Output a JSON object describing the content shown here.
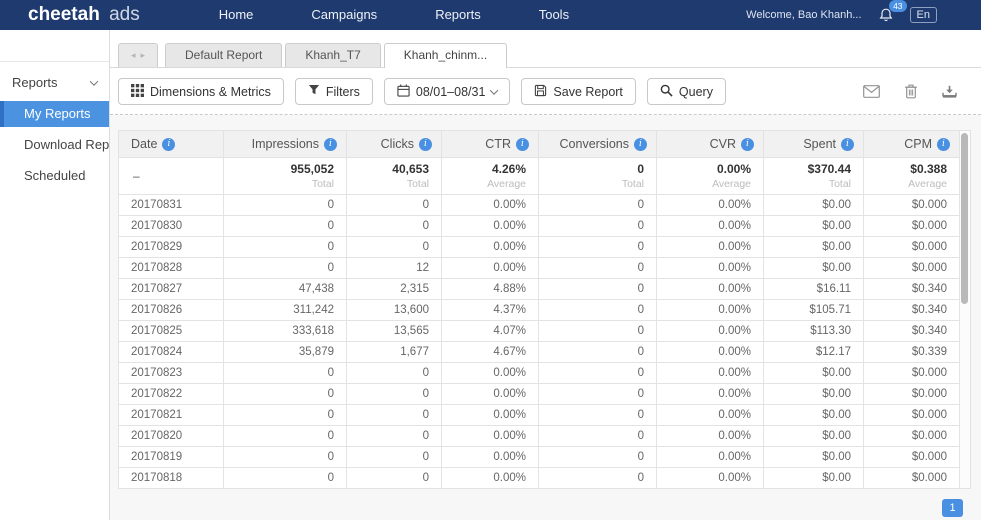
{
  "colors": {
    "navbar_bg": "#1e3a6e",
    "accent_blue": "#4a90e2",
    "sidebar_active_bg": "#4b93e0",
    "sidebar_active_stripe": "#2f6fc4"
  },
  "navbar": {
    "brand_bold": "cheetah",
    "brand_light": "ads",
    "items": [
      "Home",
      "Campaigns",
      "Reports",
      "Tools"
    ],
    "welcome": "Welcome,  Bao Khanh...",
    "notification_count": "43",
    "language": "En"
  },
  "tabs": {
    "items": [
      {
        "label": "Default Report",
        "active": false
      },
      {
        "label": "Khanh_T7",
        "active": false
      },
      {
        "label": "Khanh_chinm...",
        "active": true
      }
    ]
  },
  "sidebar": {
    "group_label": "Reports",
    "items": [
      {
        "label": "My Reports",
        "active": true
      },
      {
        "label": "Download Report",
        "active": false
      },
      {
        "label": "Scheduled",
        "active": false
      }
    ]
  },
  "toolbar": {
    "dimensions_metrics": "Dimensions & Metrics",
    "filters": "Filters",
    "date_range": "08/01–08/31",
    "save_report": "Save Report",
    "query": "Query"
  },
  "table": {
    "info_icon_glyph": "i",
    "columns": [
      "Date",
      "Impressions",
      "Clicks",
      "CTR",
      "Conversions",
      "CVR",
      "Spent",
      "CPM"
    ],
    "totals": {
      "date": "–",
      "cells": [
        {
          "value": "955,052",
          "sub": "Total"
        },
        {
          "value": "40,653",
          "sub": "Total"
        },
        {
          "value": "4.26%",
          "sub": "Average"
        },
        {
          "value": "0",
          "sub": "Total"
        },
        {
          "value": "0.00%",
          "sub": "Average"
        },
        {
          "value": "$370.44",
          "sub": "Total"
        },
        {
          "value": "$0.388",
          "sub": "Average"
        }
      ]
    },
    "rows": [
      [
        "20170831",
        "0",
        "0",
        "0.00%",
        "0",
        "0.00%",
        "$0.00",
        "$0.000"
      ],
      [
        "20170830",
        "0",
        "0",
        "0.00%",
        "0",
        "0.00%",
        "$0.00",
        "$0.000"
      ],
      [
        "20170829",
        "0",
        "0",
        "0.00%",
        "0",
        "0.00%",
        "$0.00",
        "$0.000"
      ],
      [
        "20170828",
        "0",
        "12",
        "0.00%",
        "0",
        "0.00%",
        "$0.00",
        "$0.000"
      ],
      [
        "20170827",
        "47,438",
        "2,315",
        "4.88%",
        "0",
        "0.00%",
        "$16.11",
        "$0.340"
      ],
      [
        "20170826",
        "311,242",
        "13,600",
        "4.37%",
        "0",
        "0.00%",
        "$105.71",
        "$0.340"
      ],
      [
        "20170825",
        "333,618",
        "13,565",
        "4.07%",
        "0",
        "0.00%",
        "$113.30",
        "$0.340"
      ],
      [
        "20170824",
        "35,879",
        "1,677",
        "4.67%",
        "0",
        "0.00%",
        "$12.17",
        "$0.339"
      ],
      [
        "20170823",
        "0",
        "0",
        "0.00%",
        "0",
        "0.00%",
        "$0.00",
        "$0.000"
      ],
      [
        "20170822",
        "0",
        "0",
        "0.00%",
        "0",
        "0.00%",
        "$0.00",
        "$0.000"
      ],
      [
        "20170821",
        "0",
        "0",
        "0.00%",
        "0",
        "0.00%",
        "$0.00",
        "$0.000"
      ],
      [
        "20170820",
        "0",
        "0",
        "0.00%",
        "0",
        "0.00%",
        "$0.00",
        "$0.000"
      ],
      [
        "20170819",
        "0",
        "0",
        "0.00%",
        "0",
        "0.00%",
        "$0.00",
        "$0.000"
      ],
      [
        "20170818",
        "0",
        "0",
        "0.00%",
        "0",
        "0.00%",
        "$0.00",
        "$0.000"
      ]
    ]
  },
  "pagination": {
    "current_page": "1"
  }
}
